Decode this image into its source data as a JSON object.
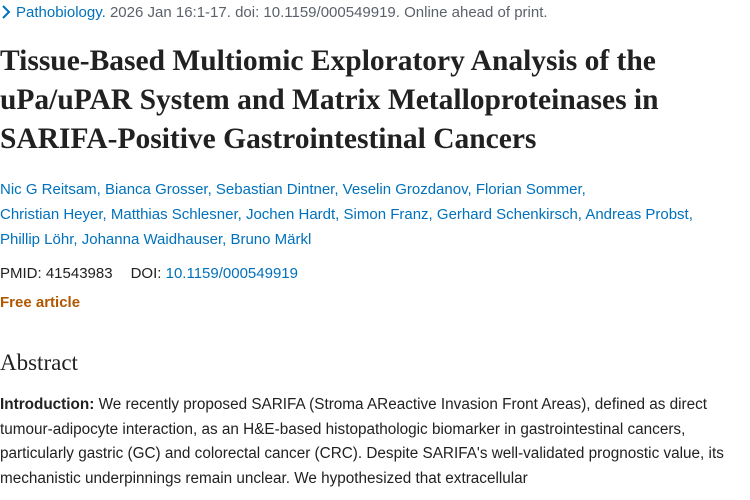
{
  "citation": {
    "journal": "Pathobiology.",
    "details": "2026 Jan 16:1-17. doi: 10.1159/000549919. Online ahead of print."
  },
  "title": "Tissue-Based Multiomic Exploratory Analysis of the uPa/uPAR System and Matrix Metalloproteinases in SARIFA-Positive Gastrointestinal Cancers",
  "authors": [
    [
      "Nic G Reitsam,",
      "Bianca Grosser,",
      "Sebastian Dintner,",
      "Veselin Grozdanov,",
      "Florian Sommer,"
    ],
    [
      "Christian Heyer,",
      "Matthias Schlesner,",
      "Jochen Hardt,",
      "Simon Franz,",
      "Gerhard Schenkirsch,",
      "Andreas Probst,"
    ],
    [
      "Phillip Löhr,",
      "Johanna Waidhauser,",
      "Bruno Märkl"
    ]
  ],
  "identifiers": {
    "pmid_label": "PMID:",
    "pmid": "41543983",
    "doi_label": "DOI:",
    "doi": "10.1159/000549919"
  },
  "free_article": "Free article",
  "abstract": {
    "heading": "Abstract",
    "label": "Introduction:",
    "text": "We recently proposed SARIFA (Stroma AReactive Invasion Front Areas), defined as direct tumour-adipocyte interaction, as an H&E-based histopathologic biomarker in gastrointestinal cancers, particularly gastric (GC) and colorectal cancer (CRC). Despite SARIFA's well-validated prognostic value, its mechanistic underpinnings remain unclear. We hypothesized that extracellular"
  }
}
